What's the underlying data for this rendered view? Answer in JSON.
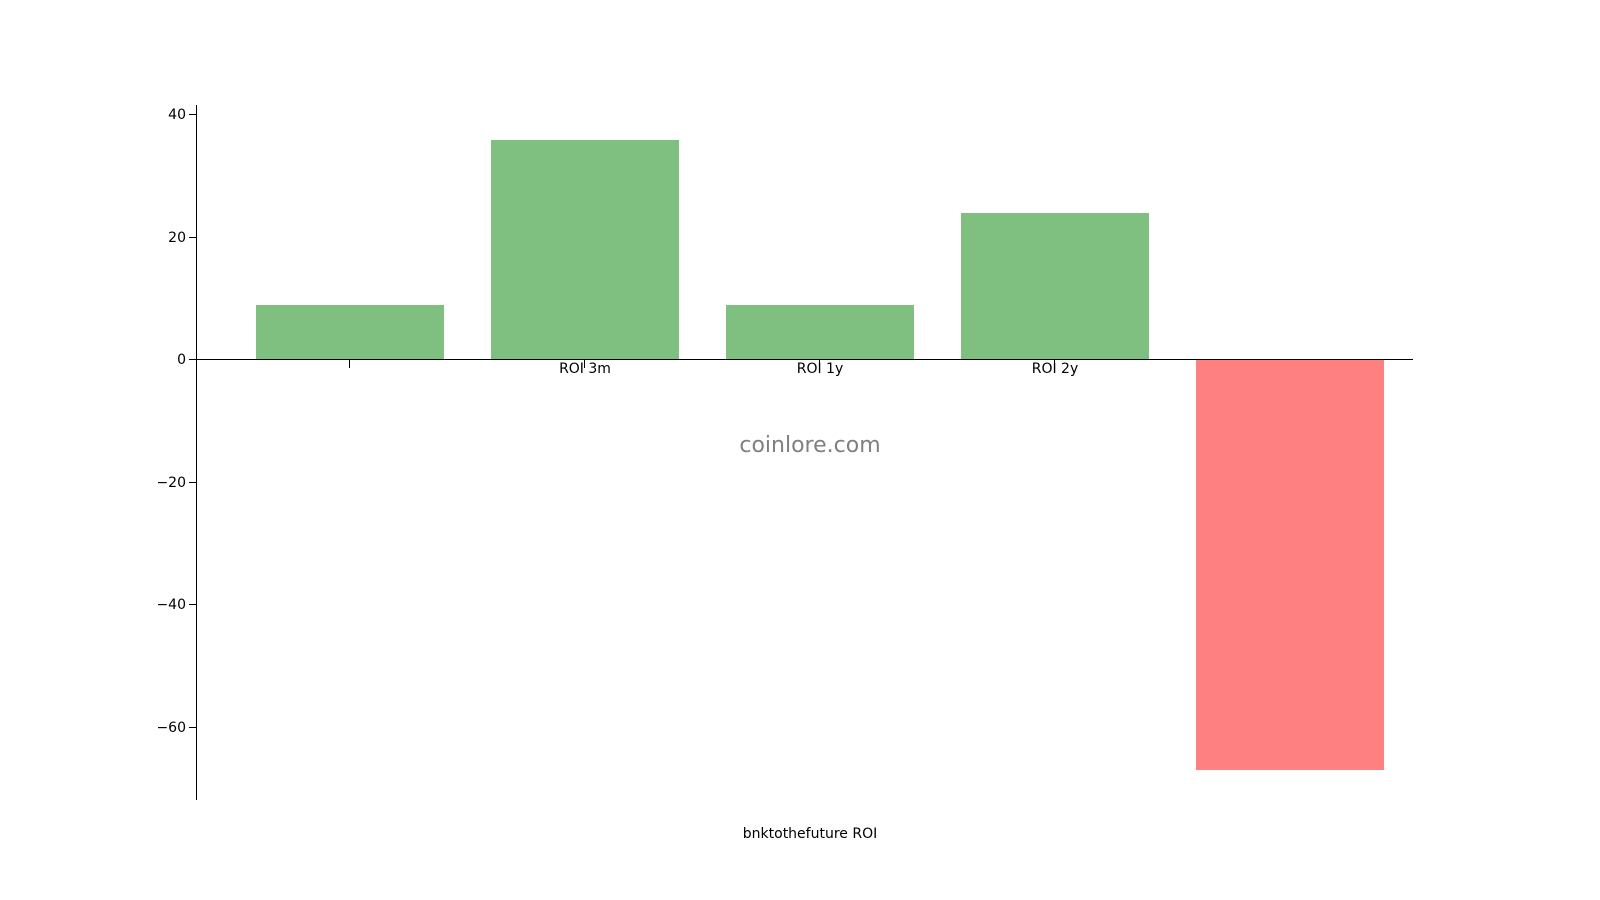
{
  "figure": {
    "background": "#ffffff"
  },
  "chart_data": {
    "type": "bar",
    "title": "",
    "xlabel": "bnktothefuture ROI",
    "ylabel": "",
    "watermark": "coinlore.com",
    "categories": [
      "",
      "ROI 3m",
      "ROI 1y",
      "ROI 2y",
      ""
    ],
    "values": [
      9,
      36,
      9,
      24,
      -67
    ],
    "y_ticks": [
      40,
      20,
      0,
      -20,
      -40,
      -60
    ],
    "y_tick_labels": [
      "40",
      "20",
      "0",
      "−20",
      "−40",
      "−60"
    ],
    "ylim": [
      -72,
      42
    ],
    "grid": false,
    "legend": "none",
    "positive_color": "#7fbf7f",
    "negative_color": "#ff8080",
    "axis_color": "#000000",
    "text_color": "#000000",
    "watermark_color": "#808080"
  }
}
